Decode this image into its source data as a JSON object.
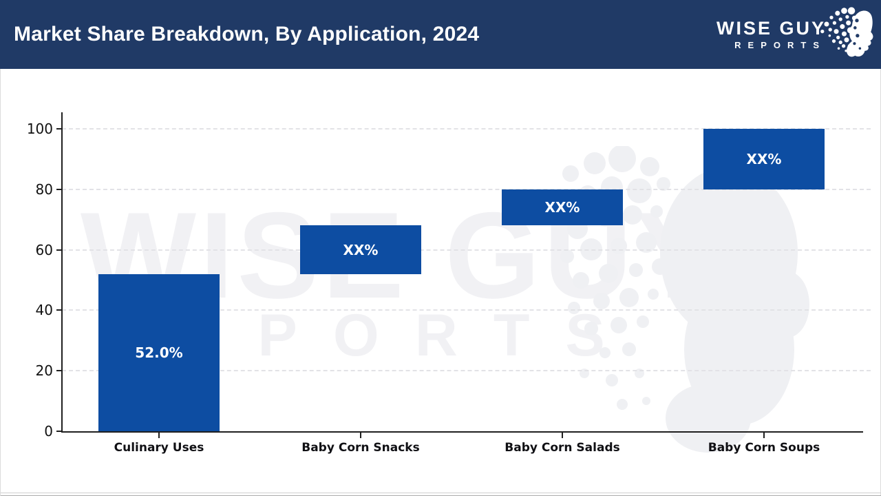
{
  "header": {
    "title": "Market Share Breakdown, By Application, 2024",
    "logo": {
      "line1": "WISE GUY",
      "line2": "REPORTS"
    }
  },
  "watermark": {
    "line1": "WISE GUY",
    "line2": "REPORTS"
  },
  "chart_data": {
    "type": "bar",
    "subtype": "waterfall",
    "title": "Market Share Breakdown, By Application, 2024",
    "categories": [
      "Culinary Uses",
      "Baby Corn Snacks",
      "Baby Corn Salads",
      "Baby Corn Soups"
    ],
    "series": [
      {
        "name": "Market Share",
        "segments": [
          {
            "category": "Culinary Uses",
            "start": 0,
            "end": 52,
            "label": "52.0%"
          },
          {
            "category": "Baby Corn Snacks",
            "start": 52,
            "end": 68,
            "label": "XX%"
          },
          {
            "category": "Baby Corn Salads",
            "start": 68,
            "end": 80,
            "label": "XX%"
          },
          {
            "category": "Baby Corn Soups",
            "start": 80,
            "end": 100,
            "label": "XX%"
          }
        ]
      }
    ],
    "xlabel": "",
    "ylabel": "",
    "ylim": [
      0,
      100
    ],
    "yticks": [
      0,
      20,
      40,
      60,
      80,
      100
    ],
    "grid": "horizontal-dashed",
    "legend": "none",
    "bar_color": "#0d4da2",
    "bar_label_color": "#ffffff"
  },
  "colors": {
    "header_bg": "#203a66",
    "bar": "#0d4da2",
    "grid": "#e2e2e6",
    "axis": "#1f1f1f",
    "watermark": "#f1f1f4"
  }
}
